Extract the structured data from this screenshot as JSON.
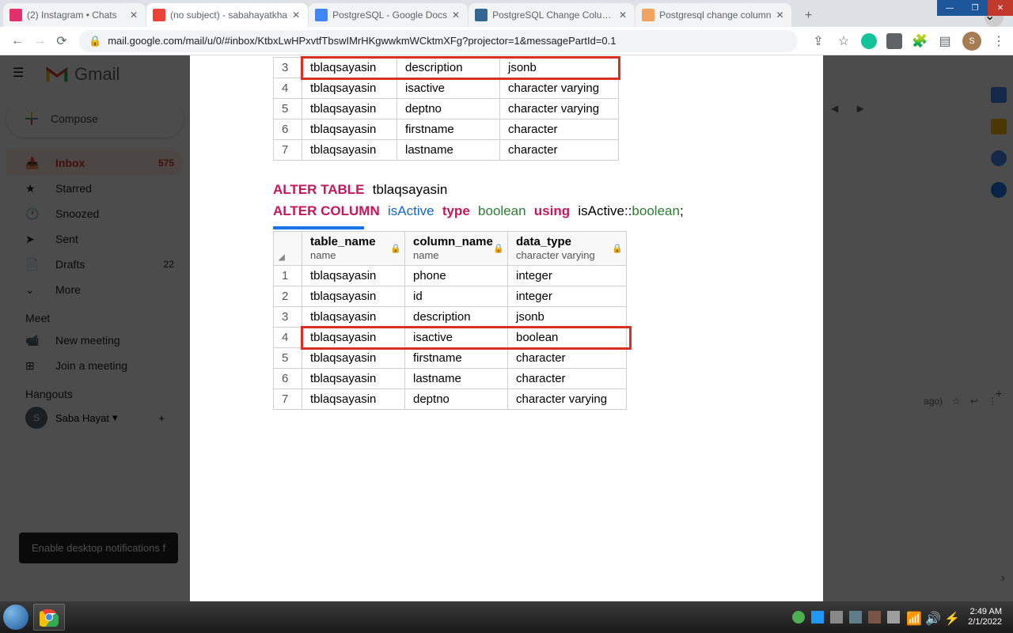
{
  "browser": {
    "tabs": [
      {
        "title": "(2) Instagram • Chats",
        "favicon_bg": "#e1306c"
      },
      {
        "title": "(no subject) - sabahayatkha",
        "favicon_bg": "#ea4335",
        "active": true
      },
      {
        "title": "PostgreSQL - Google Docs",
        "favicon_bg": "#4285f4"
      },
      {
        "title": "PostgreSQL Change Column",
        "favicon_bg": "#336791"
      },
      {
        "title": "Postgresql change column",
        "favicon_bg": "#f4a261"
      }
    ],
    "url": "mail.google.com/mail/u/0/#inbox/KtbxLwHPxvtfTbswIMrHKgwwkmWCktmXFg?projector=1&messagePartId=0.1",
    "user_initial": "S",
    "user_avatar_bg": "#a67c52"
  },
  "gmail": {
    "logo_text": "Gmail",
    "compose": "Compose",
    "sidebar": [
      {
        "icon": "📥",
        "label": "Inbox",
        "count": "575",
        "active": true
      },
      {
        "icon": "★",
        "label": "Starred"
      },
      {
        "icon": "🕐",
        "label": "Snoozed"
      },
      {
        "icon": "➤",
        "label": "Sent"
      },
      {
        "icon": "📄",
        "label": "Drafts",
        "count": "22"
      },
      {
        "icon": "⌄",
        "label": "More"
      }
    ],
    "meet_label": "Meet",
    "meet_items": [
      {
        "icon": "📹",
        "label": "New meeting"
      },
      {
        "icon": "⊞",
        "label": "Join a meeting"
      }
    ],
    "hangouts_label": "Hangouts",
    "hangouts_user": "Saba Hayat",
    "hangouts_initial": "S",
    "notification": "Enable desktop notifications f"
  },
  "content": {
    "table1": {
      "rows": [
        {
          "n": "3",
          "t": "tblaqsayasin",
          "c": "description",
          "d": "jsonb",
          "hl": true
        },
        {
          "n": "4",
          "t": "tblaqsayasin",
          "c": "isactive",
          "d": "character varying"
        },
        {
          "n": "5",
          "t": "tblaqsayasin",
          "c": "deptno",
          "d": "character varying"
        },
        {
          "n": "6",
          "t": "tblaqsayasin",
          "c": "firstname",
          "d": "character"
        },
        {
          "n": "7",
          "t": "tblaqsayasin",
          "c": "lastname",
          "d": "character"
        }
      ]
    },
    "sql": {
      "line1_kw1": "ALTER TABLE",
      "line1_id": "tblaqsayasin",
      "line2_kw1": "ALTER COLUMN",
      "line2_id1": "isActive",
      "line2_kw2": "type",
      "line2_ty1": "boolean",
      "line2_kw3": "using",
      "line2_id2": "isActive::",
      "line2_ty2": "boolean",
      "line2_semi": ";"
    },
    "table2": {
      "headers": [
        {
          "top": "table_name",
          "sub": "name"
        },
        {
          "top": "column_name",
          "sub": "name"
        },
        {
          "top": "data_type",
          "sub": "character varying"
        }
      ],
      "rows": [
        {
          "n": "1",
          "t": "tblaqsayasin",
          "c": "phone",
          "d": "integer"
        },
        {
          "n": "2",
          "t": "tblaqsayasin",
          "c": "id",
          "d": "integer"
        },
        {
          "n": "3",
          "t": "tblaqsayasin",
          "c": "description",
          "d": "jsonb"
        },
        {
          "n": "4",
          "t": "tblaqsayasin",
          "c": "isactive",
          "d": "boolean",
          "hl": true
        },
        {
          "n": "5",
          "t": "tblaqsayasin",
          "c": "firstname",
          "d": "character"
        },
        {
          "n": "6",
          "t": "tblaqsayasin",
          "c": "lastname",
          "d": "character"
        },
        {
          "n": "7",
          "t": "tblaqsayasin",
          "c": "deptno",
          "d": "character varying"
        }
      ]
    }
  },
  "right_panel": {
    "timestamp_hint": "ago)"
  },
  "taskbar": {
    "time": "2:49 AM",
    "date": "2/1/2022"
  }
}
